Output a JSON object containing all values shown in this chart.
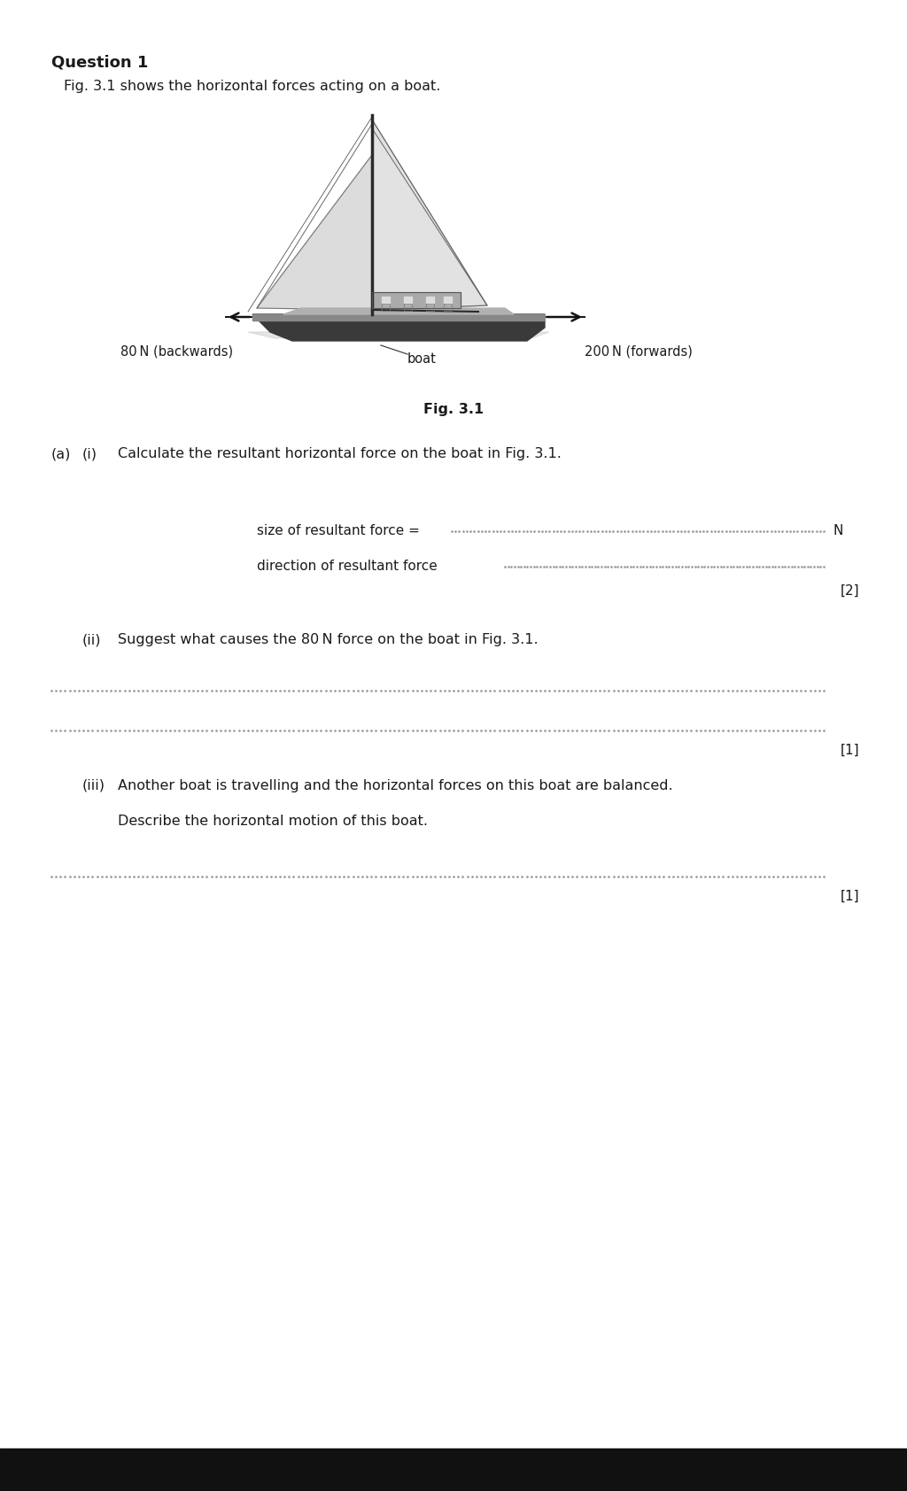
{
  "title": "Question 1",
  "subtitle": "Fig. 3.1 shows the horizontal forces acting on a boat.",
  "fig_label": "Fig. 3.1",
  "force_left_label": "80 N (backwards)",
  "force_right_label": "200 N (forwards)",
  "boat_label": "boat",
  "part_a_header": "(a)",
  "part_a_i_num": "(i)",
  "part_a_i_text": "Calculate the resultant horizontal force on the boat in Fig. 3.1.",
  "size_label": "size of resultant force =",
  "size_unit": "N",
  "direction_label": "direction of resultant force",
  "mark_a": "[2]",
  "part_a_ii_num": "(ii)",
  "part_a_ii_text": "Suggest what causes the 80 N force on the boat in Fig. 3.1.",
  "mark_b": "[1]",
  "part_a_iii_num": "(iii)",
  "part_a_iii_text": "Another boat is travelling and the horizontal forces on this boat are balanced.",
  "part_a_iii_sub": "Describe the horizontal motion of this boat.",
  "mark_c": "[1]",
  "bg_color": "#ffffff",
  "text_color": "#1a1a1a",
  "dotted_color": "#999999",
  "arrow_color": "#111111",
  "footer_color": "#111111"
}
